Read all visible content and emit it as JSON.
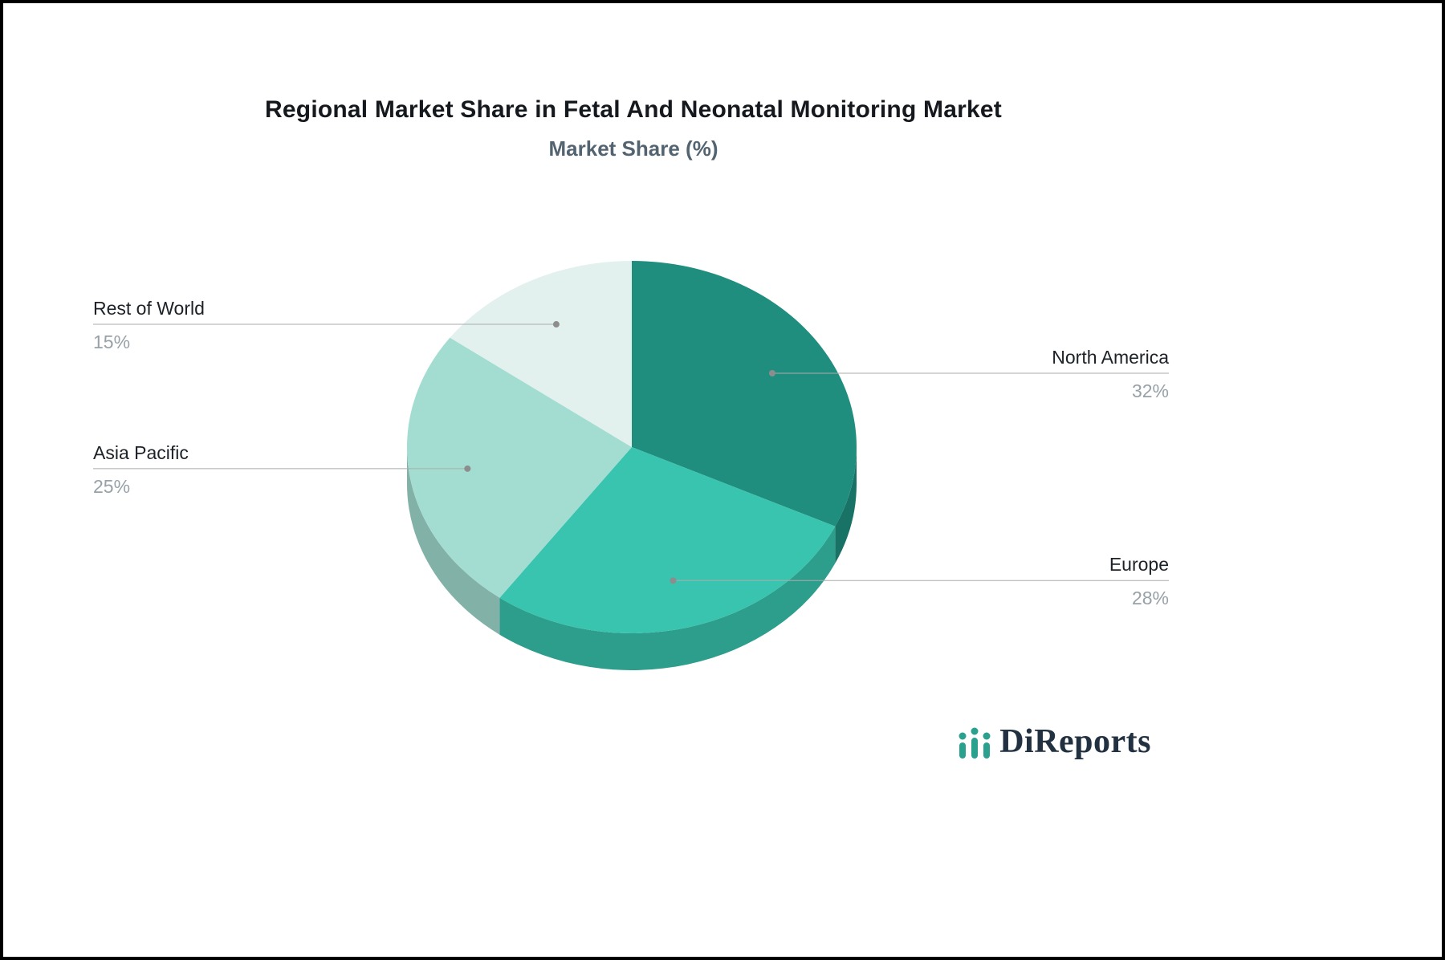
{
  "chart_data": {
    "type": "pie",
    "title": "Regional Market Share in Fetal And Neonatal Monitoring Market",
    "subtitle": "Market Share (%)",
    "unit": "%",
    "categories": [
      "North America",
      "Europe",
      "Asia Pacific",
      "Rest of World"
    ],
    "values": [
      32,
      28,
      25,
      15
    ],
    "labels": [
      "32%",
      "28%",
      "25%",
      "15%"
    ],
    "colors": [
      "#1f8e7f",
      "#38c4af",
      "#a3ddd2",
      "#e3f1ee"
    ],
    "start_angle_deg": 0,
    "direction": "clockwise",
    "style": "3d",
    "legend_position": "callouts",
    "callout_line_color": "#ababab",
    "callout_value_color": "#97a1a8"
  },
  "branding": {
    "logo_text": "DiReports",
    "logo_icon": "bar-chart-icon",
    "logo_text_color": "#223141",
    "icon_color": "#2aa18f"
  }
}
